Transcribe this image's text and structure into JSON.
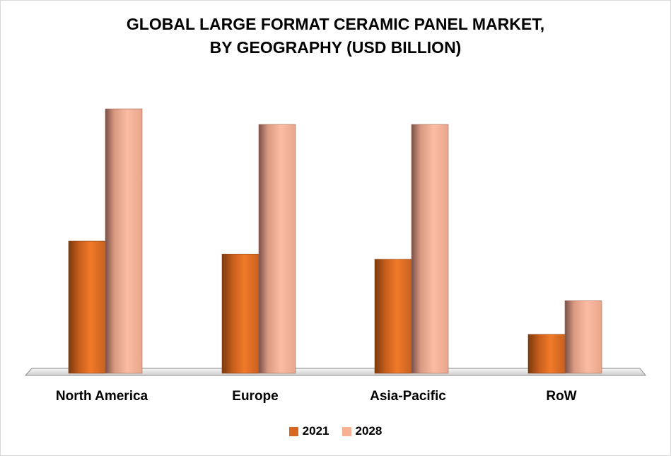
{
  "chart_data": {
    "type": "bar",
    "title_line1": "GLOBAL LARGE FORMAT CERAMIC PANEL MARKET,",
    "title_line2": "BY GEOGRAPHY (USD BILLION)",
    "categories": [
      "North America",
      "Europe",
      "Asia-Pacific",
      "RoW"
    ],
    "series": [
      {
        "name": "2021",
        "color": "#e06f22",
        "values": [
          5.1,
          4.6,
          4.4,
          1.5
        ]
      },
      {
        "name": "2028",
        "color": "#f9b49a",
        "values": [
          10.2,
          9.6,
          9.6,
          2.8
        ]
      }
    ],
    "ylim": [
      0,
      12
    ],
    "grid": false,
    "legend_position": "bottom"
  }
}
